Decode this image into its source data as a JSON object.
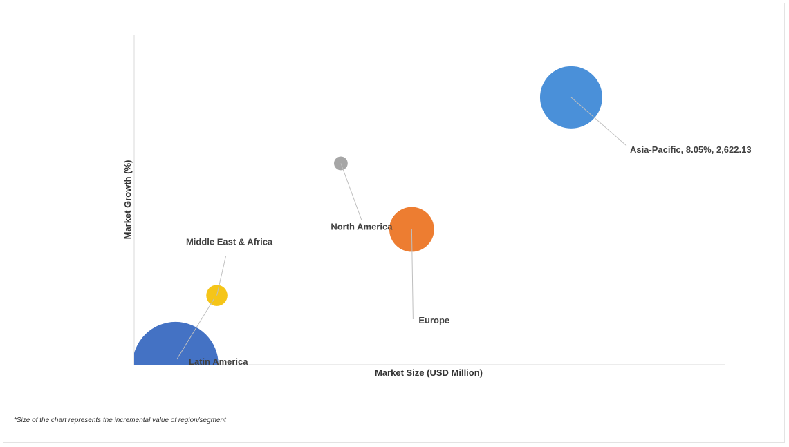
{
  "chart_data": {
    "type": "bubble",
    "xlabel": "Market Size (USD Million)",
    "ylabel": "Market Growth (%)",
    "note": "*Size of the chart represents the incremental value of region/segment",
    "axis_ticks_shown": false,
    "grid": false,
    "series": [
      {
        "name": "Asia-Pacific",
        "label": "Asia-Pacific, 8.05%, 2,622.13",
        "x": 0.74,
        "y": 0.81,
        "size": 1.0,
        "color": "#4a90d9"
      },
      {
        "name": "North America",
        "label": "North America",
        "x": 0.35,
        "y": 0.61,
        "size": 0.22,
        "color": "#a6a6a6"
      },
      {
        "name": "Europe",
        "label": "Europe",
        "x": 0.47,
        "y": 0.41,
        "size": 0.72,
        "color": "#ed7d31"
      },
      {
        "name": "Middle East & Africa",
        "label": "Middle East & Africa",
        "x": 0.14,
        "y": 0.21,
        "size": 0.34,
        "color": "#f5c518"
      },
      {
        "name": "Latin America",
        "label": "Latin America",
        "x": 0.07,
        "y": 0.0,
        "size": 1.38,
        "color": "#4472c4"
      }
    ]
  }
}
